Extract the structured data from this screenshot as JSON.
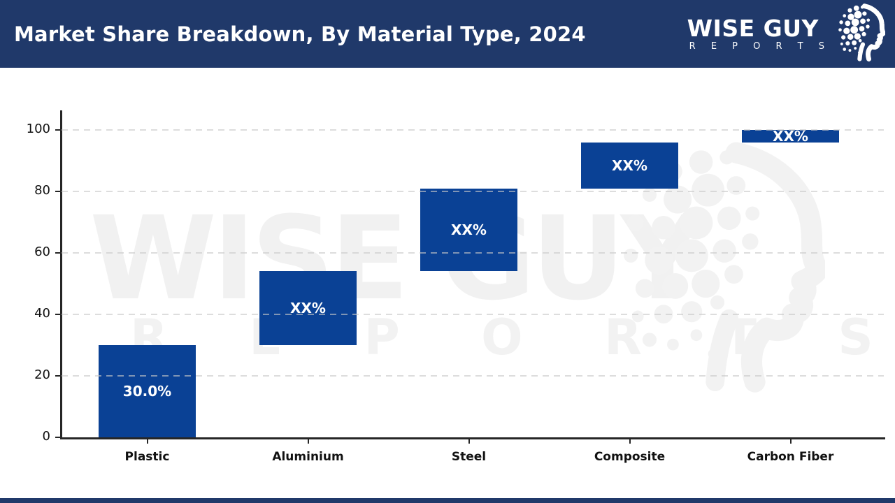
{
  "header": {
    "title": "Market Share Breakdown, By Material Type, 2024",
    "logo": {
      "name": "WISE GUY",
      "sub": "R E P O R T S"
    }
  },
  "watermark": {
    "name": "WISE GUY",
    "sub": "R E P O R T S"
  },
  "colors": {
    "header_bg": "#20396a",
    "bar_blue": "#0a4195",
    "grid_gray": "#dcdcdc",
    "axis_dark": "#262626",
    "bar_label_text": "#ffffff",
    "watermark_gray": "#f1f1f1"
  },
  "chart_data": {
    "type": "bar",
    "variant": "floating-waterfall",
    "title": "Market Share Breakdown, By Material Type, 2024",
    "categories": [
      "Plastic",
      "Aluminium",
      "Steel",
      "Composite",
      "Carbon Fiber"
    ],
    "segments": [
      {
        "category": "Plastic",
        "start": 0,
        "end": 30,
        "label": "30.0%"
      },
      {
        "category": "Aluminium",
        "start": 30,
        "end": 54,
        "label": "XX%"
      },
      {
        "category": "Steel",
        "start": 54,
        "end": 81,
        "label": "XX%"
      },
      {
        "category": "Composite",
        "start": 81,
        "end": 96,
        "label": "XX%"
      },
      {
        "category": "Carbon Fiber",
        "start": 96,
        "end": 100,
        "label": "XX%"
      }
    ],
    "yticks": [
      0,
      20,
      40,
      60,
      80,
      100
    ],
    "ylim": [
      0,
      105
    ],
    "xlabel": "",
    "ylabel": "",
    "grid": "horizontal-dashed",
    "legend": false
  }
}
